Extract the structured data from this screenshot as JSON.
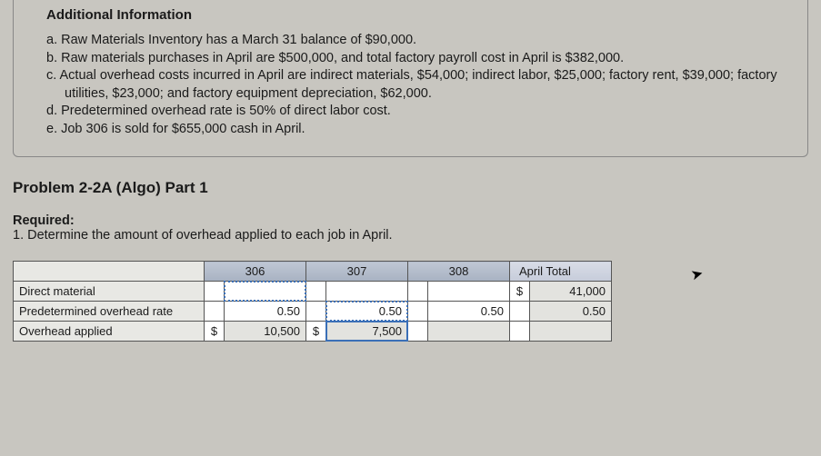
{
  "info": {
    "heading": "Additional Information",
    "items": [
      "a.  Raw Materials Inventory has a March 31 balance of $90,000.",
      "b.  Raw materials purchases in April are $500,000, and total factory payroll cost in April is $382,000.",
      "c.  Actual overhead costs incurred in April are indirect materials, $54,000; indirect labor, $25,000; factory rent, $39,000; factory utilities, $23,000; and factory equipment depreciation, $62,000.",
      "d.  Predetermined overhead rate is 50% of direct labor cost.",
      "e.  Job 306 is sold for $655,000 cash in April."
    ]
  },
  "problem_title": "Problem 2-2A (Algo) Part 1",
  "required": {
    "label": "Required:",
    "text": "1. Determine the amount of overhead applied to each job in April."
  },
  "table": {
    "headers": {
      "c306": "306",
      "c307": "307",
      "c308": "308",
      "april": "April Total"
    },
    "rows": {
      "dm": {
        "label": "Direct material",
        "april_cur": "$",
        "april_val": "41,000"
      },
      "por": {
        "label": "Predetermined overhead rate",
        "v306": "0.50",
        "v307": "0.50",
        "v308": "0.50",
        "april_val": "0.50"
      },
      "oh": {
        "label": "Overhead applied",
        "cur306": "$",
        "v306": "10,500",
        "cur307": "$",
        "v307": "7,500"
      }
    }
  }
}
